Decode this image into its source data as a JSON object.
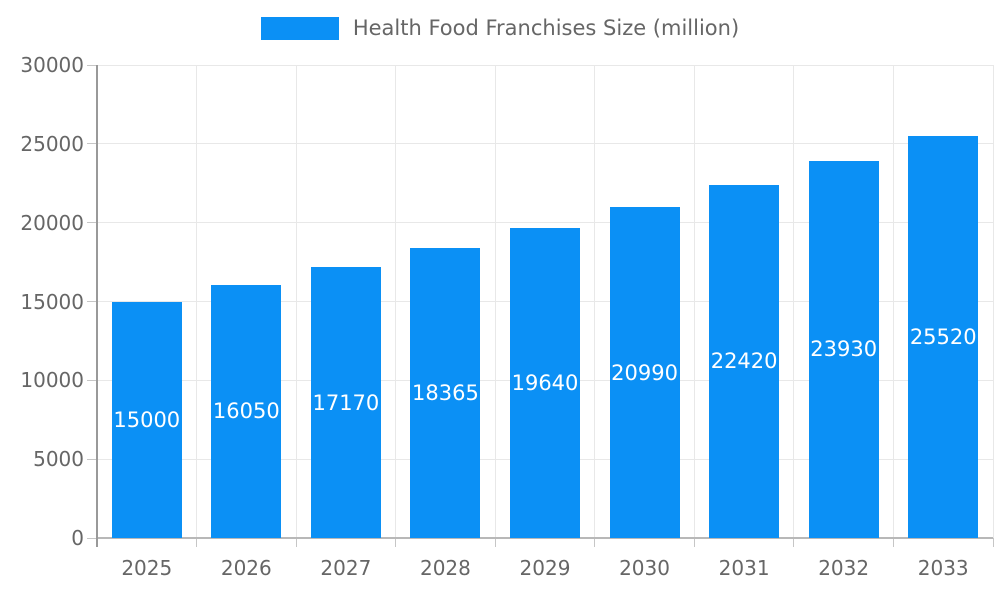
{
  "legend": {
    "label": "Health Food Franchises Size (million)",
    "swatch_color": "#0B90F5"
  },
  "chart_data": {
    "type": "bar",
    "title": "Health Food Franchises Size (million)",
    "categories": [
      "2025",
      "2026",
      "2027",
      "2028",
      "2029",
      "2030",
      "2031",
      "2032",
      "2033"
    ],
    "values": [
      15000,
      16050,
      17170,
      18365,
      19640,
      20990,
      22420,
      23930,
      25520
    ],
    "bar_labels": [
      "15000",
      "16050",
      "17170",
      "18365",
      "19640",
      "20990",
      "22420",
      "23930",
      "25520"
    ],
    "xlabel": "",
    "ylabel": "",
    "ylim": [
      0,
      30000
    ],
    "yticks": [
      0,
      5000,
      10000,
      15000,
      20000,
      25000,
      30000
    ],
    "grid": true,
    "legend_position": "top",
    "bar_label_position": "center",
    "colors": {
      "bar": "#0B90F5",
      "bar_label": "#FFFFFF",
      "axis_text": "#666666",
      "gridline": "#E8E8E8",
      "tick": "#C6C6C6",
      "x_axis_line": "#B8B8B8",
      "y_axis_line": "#999999"
    }
  }
}
